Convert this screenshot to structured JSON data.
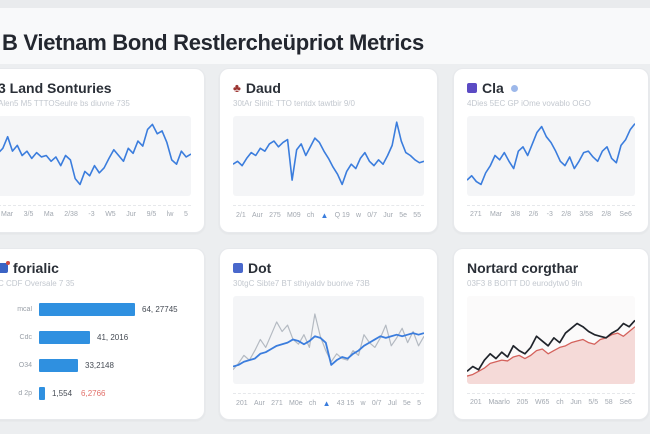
{
  "page": {
    "title": "B Vietnam Bond Restlercheüpriot Metrics"
  },
  "colors": {
    "accent_blue": "#3b7ddd",
    "bar_blue": "#2f90e0",
    "line_gray": "#b4bac2",
    "line_black": "#20242b",
    "line_red": "#d4625c",
    "area_pink": "rgba(226,122,116,0.25)",
    "card_bg": "#ffffff",
    "page_bg": "#eceef0"
  },
  "cards": [
    {
      "title": "3 Land Sonturies",
      "subtitle": "Alen5 M5 TTTOSeulre bs diuvne 735"
    },
    {
      "title": "Daud",
      "subtitle": "30tAr Slinit: TTO tentdx tawtbir 9/0",
      "icon_glyph": "♣"
    },
    {
      "title": "Cla",
      "subtitle": "4Dies 5EC GP iOme vovablo OGO"
    },
    {
      "title": "forialic",
      "subtitle": "C CDF Oversale 7 35"
    },
    {
      "title": "Dot",
      "subtitle": "30tgC Sibte7 BT sthiyaldv buorive 73B"
    },
    {
      "title": "Nortard corgthar",
      "subtitle": "03F3 8 BOITT D0 eurodytw0 9ln"
    }
  ],
  "chart_data": [
    {
      "type": "line",
      "title": "3 Land Sonturies",
      "ylim": [
        0,
        100
      ],
      "grid": false,
      "legend": "none",
      "x_ticks": [
        "Mar",
        "3/5",
        "Ma",
        "2/38",
        "-3",
        "W5",
        "Jur",
        "9/5",
        "lw",
        "5"
      ],
      "series": [
        {
          "name": "value",
          "color": "#3b7ddd",
          "width": 1.6,
          "values": [
            55,
            62,
            78,
            58,
            66,
            52,
            58,
            48,
            56,
            50,
            52,
            44,
            50,
            38,
            52,
            46,
            20,
            12,
            30,
            24,
            38,
            28,
            35,
            48,
            60,
            52,
            44,
            62,
            55,
            72,
            65,
            88,
            95,
            82,
            86,
            70,
            46,
            40,
            58,
            50,
            54
          ]
        }
      ]
    },
    {
      "type": "line",
      "title": "Daud",
      "ylim": [
        0,
        100
      ],
      "grid": false,
      "legend": "none",
      "x_ticks": [
        "2/1",
        "Aur",
        "275",
        "M09",
        "ch",
        "▲",
        "Q 19",
        "w",
        "0/7",
        "Jur",
        "5e",
        "55"
      ],
      "series": [
        {
          "name": "value",
          "color": "#3b7ddd",
          "width": 1.6,
          "values": [
            40,
            44,
            38,
            48,
            56,
            52,
            62,
            58,
            68,
            72,
            64,
            70,
            74,
            18,
            60,
            68,
            52,
            64,
            76,
            70,
            58,
            48,
            36,
            26,
            12,
            30,
            40,
            34,
            48,
            56,
            44,
            38,
            46,
            40,
            52,
            66,
            98,
            72,
            56,
            52,
            46,
            42,
            44
          ]
        }
      ]
    },
    {
      "type": "line",
      "title": "Cla",
      "ylim": [
        0,
        100
      ],
      "grid": false,
      "legend": "none",
      "x_ticks": [
        "271",
        "Mar",
        "3/8",
        "2/6",
        "-3",
        "2/8",
        "3/58",
        "2/8",
        "Se6"
      ],
      "series": [
        {
          "name": "value",
          "color": "#3b7ddd",
          "width": 1.6,
          "values": [
            18,
            24,
            16,
            12,
            28,
            38,
            52,
            46,
            56,
            44,
            34,
            58,
            64,
            52,
            68,
            84,
            92,
            78,
            70,
            58,
            44,
            38,
            50,
            34,
            44,
            56,
            58,
            50,
            44,
            58,
            64,
            48,
            42,
            66,
            74,
            88,
            96
          ]
        }
      ]
    },
    {
      "type": "bar",
      "orientation": "horizontal",
      "title": "forialic",
      "bar_color": "#2f90e0",
      "categories": [
        "mcal",
        "Cdc",
        "O34",
        "d 2p"
      ],
      "values": [
        64,
        34,
        26,
        4
      ],
      "rows": [
        {
          "label": "mcal",
          "pct": 64,
          "value": "64, 27745"
        },
        {
          "label": "Cdc",
          "pct": 34,
          "value": "41, 2016"
        },
        {
          "label": "O34",
          "pct": 26,
          "value": "33,2148"
        },
        {
          "label": "d 2p",
          "pct": 4,
          "value": "1,554",
          "extra": "6,2766"
        }
      ]
    },
    {
      "type": "line",
      "title": "Dot",
      "ylim": [
        0,
        100
      ],
      "grid": false,
      "legend": "none",
      "x_ticks": [
        "201",
        "Aur",
        "271",
        "M0e",
        "ch",
        "▲",
        "43 15",
        "w",
        "0/7",
        "Jul",
        "5e",
        "5"
      ],
      "series": [
        {
          "name": "benchmark",
          "color": "#b4bac2",
          "width": 1.2,
          "values": [
            14,
            22,
            32,
            26,
            38,
            52,
            42,
            58,
            74,
            62,
            70,
            52,
            46,
            58,
            42,
            84,
            56,
            38,
            24,
            34,
            28,
            26,
            38,
            32,
            58,
            48,
            42,
            54,
            70,
            44,
            54,
            66,
            48,
            62,
            44,
            56
          ]
        },
        {
          "name": "value",
          "color": "#3b7ddd",
          "width": 1.8,
          "values": [
            18,
            20,
            24,
            26,
            28,
            34,
            36,
            40,
            44,
            46,
            48,
            52,
            50,
            46,
            50,
            56,
            54,
            48,
            20,
            26,
            30,
            28,
            34,
            38,
            44,
            48,
            52,
            56,
            54,
            56,
            58,
            56,
            58,
            60,
            58,
            60
          ]
        }
      ]
    },
    {
      "type": "line+area",
      "title": "Nortard corgthar",
      "ylim": [
        0,
        100
      ],
      "grid": false,
      "legend": "none",
      "x_ticks": [
        "201",
        "Maarlo",
        "205",
        "W65",
        "ch",
        "Jun",
        "5/5",
        "58",
        "Se6"
      ],
      "series": [
        {
          "name": "spread",
          "color": "#d4625c",
          "width": 1.3,
          "fill": "rgba(226,122,116,0.25)",
          "values": [
            6,
            8,
            12,
            16,
            22,
            24,
            26,
            25,
            30,
            32,
            28,
            32,
            38,
            40,
            34,
            38,
            42,
            44,
            48,
            50,
            52,
            48,
            46,
            52,
            54,
            58,
            60,
            56,
            62,
            68
          ]
        },
        {
          "name": "yield",
          "color": "#20242b",
          "width": 1.7,
          "values": [
            12,
            18,
            14,
            26,
            34,
            28,
            36,
            30,
            44,
            38,
            34,
            42,
            56,
            50,
            44,
            54,
            48,
            60,
            66,
            72,
            68,
            62,
            58,
            56,
            54,
            60,
            64,
            72,
            68,
            76
          ]
        }
      ]
    }
  ]
}
